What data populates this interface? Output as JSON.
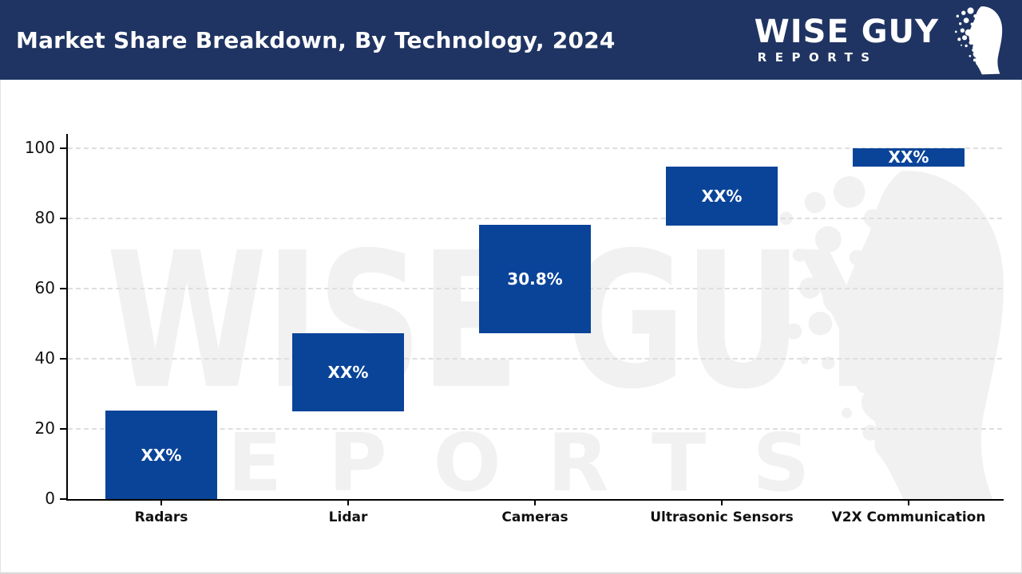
{
  "header": {
    "title": "Market Share Breakdown, By Technology, 2024",
    "logo": {
      "line1": "WISE GUY",
      "line2": "REPORTS"
    }
  },
  "watermark": {
    "line1": "WISE GUY",
    "line2": "REPORTS"
  },
  "colors": {
    "header_bg": "#1f3462",
    "bar": "#0a4499",
    "grid": "#dedede",
    "axis": "#000000",
    "bar_label": "#ffffff",
    "watermark": "#f1f1f1"
  },
  "chart_data": {
    "type": "bar",
    "variant": "waterfall-floating-bars",
    "title": "Market Share Breakdown, By Technology, 2024",
    "categories": [
      "Radars",
      "Lidar",
      "Cameras",
      "Ultrasonic Sensors",
      "V2X Communication"
    ],
    "segments": [
      {
        "category": "Radars",
        "start": 0,
        "end": 25.2,
        "label": "XX%"
      },
      {
        "category": "Lidar",
        "start": 25.0,
        "end": 47.2,
        "label": "XX%"
      },
      {
        "category": "Cameras",
        "start": 47.3,
        "end": 78.1,
        "label": "30.8%"
      },
      {
        "category": "Ultrasonic Sensors",
        "start": 78.0,
        "end": 94.8,
        "label": "XX%"
      },
      {
        "category": "V2X Communication",
        "start": 94.8,
        "end": 100.0,
        "label": "XX%"
      }
    ],
    "yticks": [
      0,
      20,
      40,
      60,
      80,
      100
    ],
    "ylim": [
      0,
      100
    ],
    "xlabel": "",
    "ylabel": "",
    "grid": "horizontal-dashed",
    "legend": "none"
  }
}
